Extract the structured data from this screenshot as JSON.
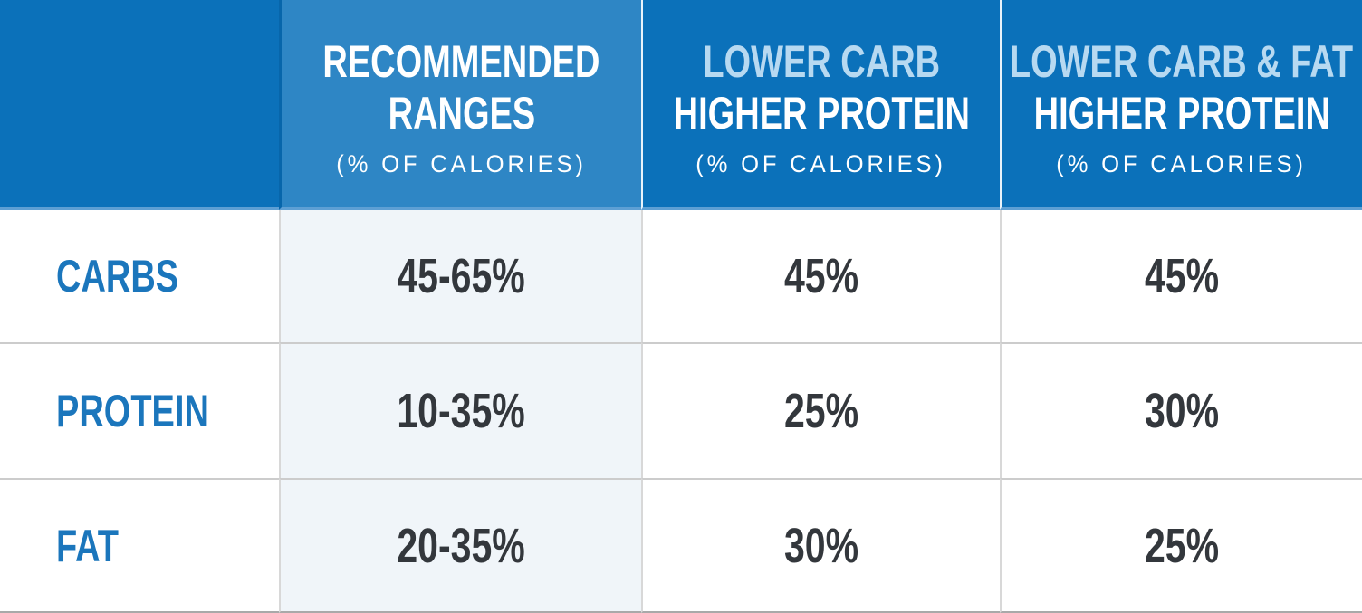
{
  "header": {
    "corner": "",
    "cols": [
      {
        "line1": "RECOMMENDED",
        "line2": "RANGES",
        "subtitle": "(% OF CALORIES)"
      },
      {
        "line1": "LOWER CARB",
        "line2": "HIGHER PROTEIN",
        "subtitle": "(% OF CALORIES)"
      },
      {
        "line1": "LOWER CARB & FAT",
        "line2": "HIGHER PROTEIN",
        "subtitle": "(% OF CALORIES)"
      }
    ]
  },
  "rows": [
    {
      "label": "CARBS",
      "values": [
        "45-65%",
        "45%",
        "45%"
      ]
    },
    {
      "label": "PROTEIN",
      "values": [
        "10-35%",
        "25%",
        "30%"
      ]
    },
    {
      "label": "FAT",
      "values": [
        "20-35%",
        "30%",
        "25%"
      ]
    }
  ],
  "colors": {
    "header_bg": "#0b71ba",
    "highlight_header_bg": "#2e86c5",
    "highlight_body_bg": "#f0f5f9",
    "pale_header_text": "#b7d9f1",
    "white_header_text": "#ffffff",
    "row_label_blue": "#1b76bc",
    "value_text": "#33373c",
    "header_underline": "#5d9fd4",
    "grid_line": "#cccccc",
    "bottom_line": "#a9a9a9"
  },
  "chart_data": {
    "type": "table",
    "columns": [
      "",
      "RECOMMENDED RANGES (% OF CALORIES)",
      "LOWER CARB HIGHER PROTEIN (% OF CALORIES)",
      "LOWER CARB & FAT HIGHER PROTEIN (% OF CALORIES)"
    ],
    "rows": [
      [
        "CARBS",
        "45-65%",
        "45%",
        "45%"
      ],
      [
        "PROTEIN",
        "10-35%",
        "25%",
        "30%"
      ],
      [
        "FAT",
        "20-35%",
        "30%",
        "25%"
      ]
    ]
  }
}
